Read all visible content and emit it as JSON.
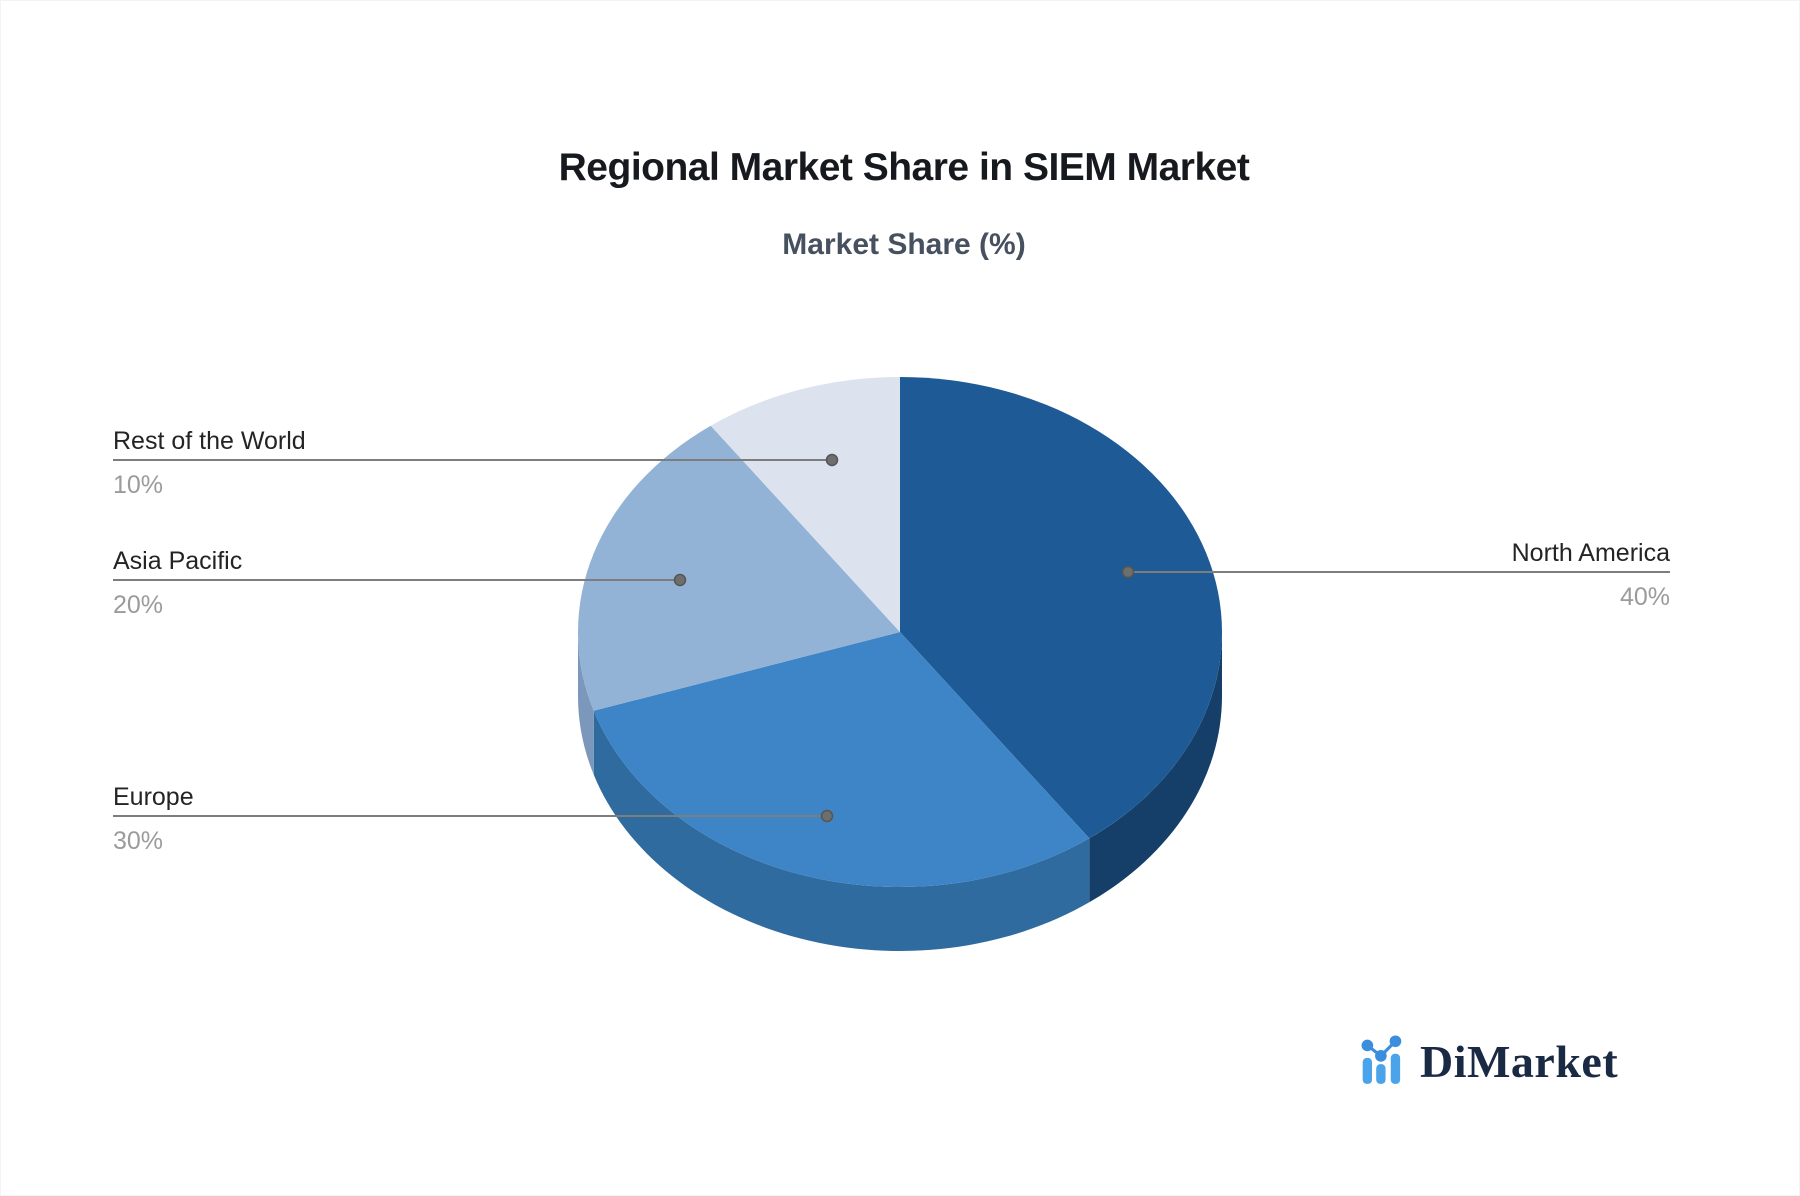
{
  "chart_data": {
    "type": "pie",
    "style": "3d",
    "title": "Regional Market Share in SIEM Market",
    "subtitle": "Market Share (%)",
    "unit": "%",
    "direction": "clockwise",
    "start_angle_deg": 0,
    "legend_position": "callout-labels",
    "segments": [
      {
        "label": "North America",
        "value": 40,
        "display": "40%",
        "color": "#1e5a96",
        "side_color": "#153f68"
      },
      {
        "label": "Europe",
        "value": 30,
        "display": "30%",
        "color": "#3d85c6",
        "side_color": "#2f6b9e"
      },
      {
        "label": "Asia Pacific",
        "value": 20,
        "display": "20%",
        "color": "#92b3d6",
        "side_color": "#7b97bb"
      },
      {
        "label": "Rest of the World",
        "value": 10,
        "display": "10%",
        "color": "#dce3ee",
        "side_color": "#b9c5d8"
      }
    ],
    "callout_line_color": "#7d7d7d",
    "callout_dot_color": "#6e6e6e",
    "label_color": "#242424",
    "value_color": "#9b9b9b",
    "title_color": "#16191e",
    "subtitle_color": "#46505e"
  },
  "branding": {
    "name": "DiMarket",
    "icon": "bar-chart-logo-icon",
    "text_color": "#1b2a44",
    "bar_color": "#4ba3ea",
    "dot_color": "#3b8ede"
  }
}
